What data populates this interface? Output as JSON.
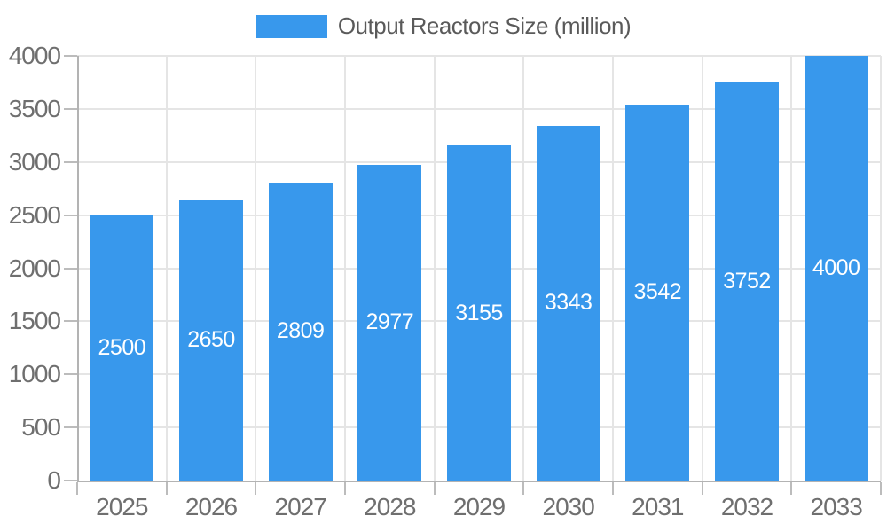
{
  "chart_data": {
    "type": "bar",
    "title": "Output Reactors Size (million)",
    "legend": {
      "position": "top",
      "entries": [
        "Output Reactors Size (million)"
      ]
    },
    "categories": [
      "2025",
      "2026",
      "2027",
      "2028",
      "2029",
      "2030",
      "2031",
      "2032",
      "2033"
    ],
    "series": [
      {
        "name": "Output Reactors Size (million)",
        "values": [
          2500,
          2650,
          2809,
          2977,
          3155,
          3343,
          3542,
          3752,
          4000
        ]
      }
    ],
    "bar_value_labels": [
      "2500",
      "2650",
      "2809",
      "2977",
      "3155",
      "3343",
      "3542",
      "3752",
      "4000"
    ],
    "xlabel": "",
    "ylabel": "",
    "ylim": [
      0,
      4000
    ],
    "ytick_step": 500,
    "ytick_labels": [
      "0",
      "500",
      "1000",
      "1500",
      "2000",
      "2500",
      "3000",
      "3500",
      "4000"
    ],
    "grid": "on",
    "colors": {
      "bar": "#3898ec",
      "gridline": "#e5e5e5",
      "axis": "#b3b3b3",
      "tick": "#bcbcbc",
      "tick_text": "#6f6f6f",
      "legend_text": "#5a5a5a",
      "bar_label_text": "#ffffff"
    }
  }
}
